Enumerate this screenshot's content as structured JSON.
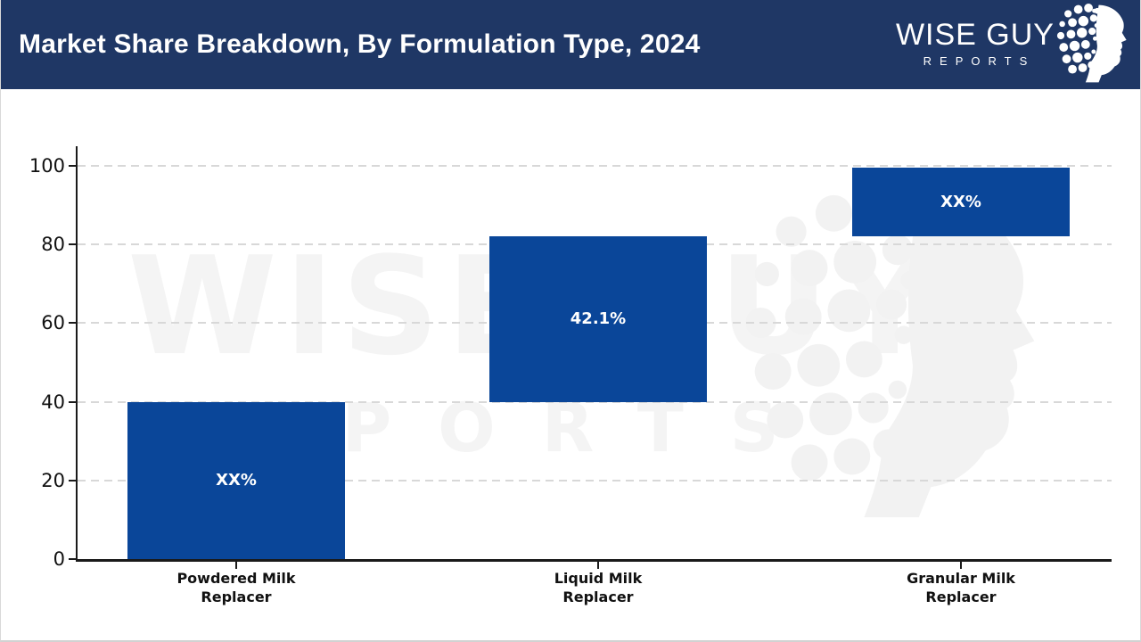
{
  "header": {
    "title": "Market Share Breakdown, By Formulation Type, 2024",
    "bg_color": "#1f3765",
    "logo": {
      "line1": "WISE GUY",
      "line2": "REPORTS"
    }
  },
  "watermark": {
    "line1": "WISE GUY",
    "line2": "REPORTS",
    "color": "#f4f4f4"
  },
  "chart": {
    "bar_color": "#0a4699",
    "axis_color": "#1a1a1a",
    "grid_color": "#d8d8d8",
    "y_axis": {
      "tick_values": [
        0,
        20,
        40,
        60,
        80,
        100
      ]
    },
    "bars": [
      {
        "start": 0,
        "end": 40,
        "label": "XX%",
        "category": [
          "Powdered Milk",
          "Replacer"
        ]
      },
      {
        "start": 40,
        "end": 82.1,
        "label": "42.1%",
        "category": [
          "Liquid Milk",
          "Replacer"
        ]
      },
      {
        "start": 82.1,
        "end": 99.5,
        "label": "XX%",
        "category": [
          "Granular Milk",
          "Replacer"
        ]
      }
    ]
  },
  "chart_data": {
    "type": "bar",
    "subtype": "stacked-waterfall",
    "title": "Market Share Breakdown, By Formulation Type, 2024",
    "categories": [
      "Powdered Milk Replacer",
      "Liquid Milk Replacer",
      "Granular Milk Replacer"
    ],
    "series": [
      {
        "name": "Market share (%)",
        "segments": [
          {
            "from": 0,
            "to": 40,
            "label": "XX%"
          },
          {
            "from": 40,
            "to": 82.1,
            "label": "42.1%"
          },
          {
            "from": 82.1,
            "to": 99.5,
            "label": "XX%"
          }
        ]
      }
    ],
    "bar_labels": [
      "XX%",
      "42.1%",
      "XX%"
    ],
    "xlabel": "",
    "ylabel": "",
    "ylim": [
      0,
      105
    ],
    "yticks": [
      0,
      20,
      40,
      60,
      80,
      100
    ],
    "grid": "horizontal-dashed",
    "legend": "none",
    "bar_color": "#0a4699",
    "label_color": "#ffffff"
  }
}
